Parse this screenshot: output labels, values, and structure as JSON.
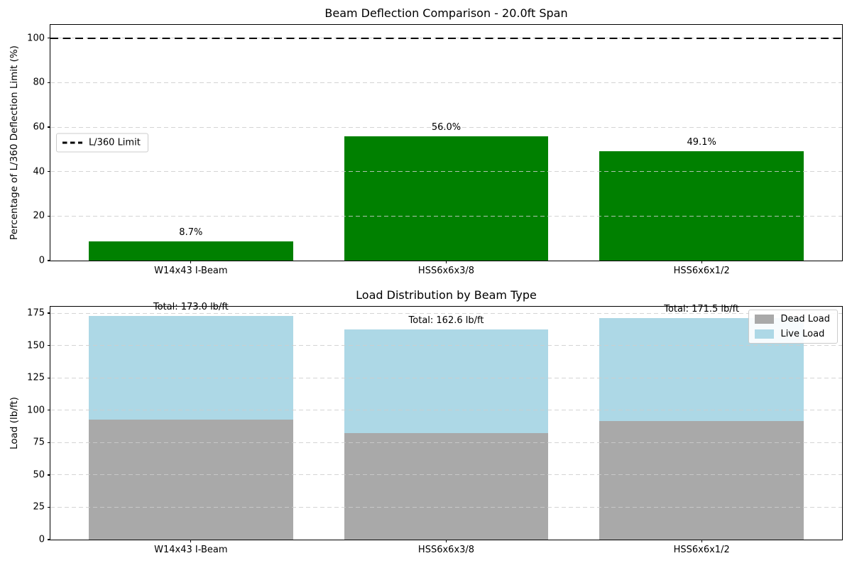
{
  "figure": {
    "background": "#ffffff",
    "text_color": "#000000",
    "grid_color": "#cdcdcd"
  },
  "chart_data": [
    {
      "chart_id": "deflection",
      "type": "bar",
      "title": "Beam Deflection Comparison - 20.0ft Span",
      "xlabel": "",
      "ylabel": "Percentage of L/360 Deflection Limit (%)",
      "categories": [
        "W14x43 I-Beam",
        "HSS6x6x3/8",
        "HSS6x6x1/2"
      ],
      "values": [
        8.7,
        56.0,
        49.1
      ],
      "value_labels": [
        "8.7%",
        "56.0%",
        "49.1%"
      ],
      "bar_color": "#008000",
      "yticks": [
        0,
        20,
        40,
        60,
        80,
        100
      ],
      "ylim": [
        0,
        106
      ],
      "grid": "dashed-y",
      "limit_line": {
        "value": 100,
        "label": "L/360 Limit",
        "color": "#000000",
        "style": "dashed"
      },
      "legend": {
        "position": "center-left",
        "items": [
          {
            "label": "L/360 Limit",
            "marker": "dashed-line",
            "color": "#000000"
          }
        ]
      }
    },
    {
      "chart_id": "loads",
      "type": "stacked-bar",
      "title": "Load Distribution by Beam Type",
      "xlabel": "",
      "ylabel": "Load (lb/ft)",
      "categories": [
        "W14x43 I-Beam",
        "HSS6x6x3/8",
        "HSS6x6x1/2"
      ],
      "series": [
        {
          "name": "Dead Load",
          "color": "#a9a9a9",
          "values": [
            93.0,
            82.6,
            91.5
          ]
        },
        {
          "name": "Live Load",
          "color": "#add8e6",
          "values": [
            80.0,
            80.0,
            80.0
          ]
        }
      ],
      "totals": [
        173.0,
        162.6,
        171.5
      ],
      "total_labels": [
        "Total: 173.0 lb/ft",
        "Total: 162.6 lb/ft",
        "Total: 171.5 lb/ft"
      ],
      "yticks": [
        0,
        25,
        50,
        75,
        100,
        125,
        150,
        175
      ],
      "ylim": [
        0,
        180
      ],
      "grid": "dashed-y",
      "legend": {
        "position": "top-right",
        "items": [
          {
            "label": "Dead Load",
            "marker": "rect",
            "color": "#a9a9a9"
          },
          {
            "label": "Live Load",
            "marker": "rect",
            "color": "#add8e6"
          }
        ]
      }
    }
  ]
}
